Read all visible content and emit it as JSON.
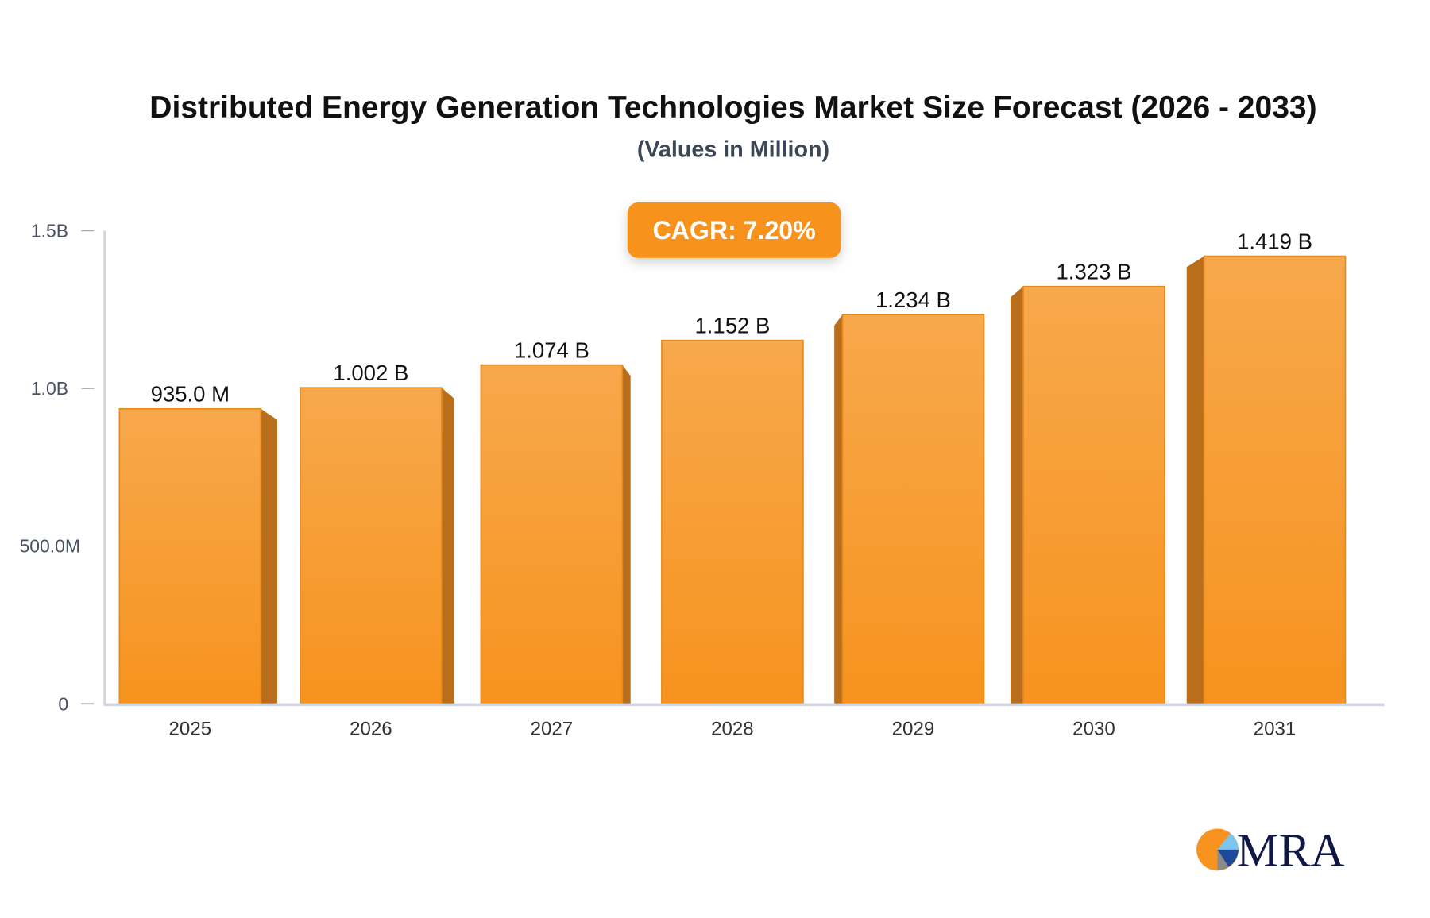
{
  "chart_data": {
    "type": "bar",
    "title": "Distributed Energy Generation Technologies Market Size Forecast (2026 - 2033)",
    "subtitle": "(Values in Million)",
    "badge": "CAGR: 7.20%",
    "categories": [
      "2025",
      "2026",
      "2027",
      "2028",
      "2029",
      "2030",
      "2031"
    ],
    "values": [
      935.0,
      1002,
      1074,
      1152,
      1234,
      1323,
      1419
    ],
    "value_unit": "Million",
    "data_labels": [
      "935.0 M",
      "1.002 B",
      "1.074 B",
      "1.152 B",
      "1.234 B",
      "1.323 B",
      "1.419 B"
    ],
    "ylim": [
      0,
      1500
    ],
    "yticks": [
      {
        "value": 0,
        "label": "0"
      },
      {
        "value": 500,
        "label": "500.0M"
      },
      {
        "value": 1000,
        "label": "1.0B"
      },
      {
        "value": 1500,
        "label": "1.5B"
      }
    ],
    "xlabel": "",
    "ylabel": "",
    "grid": false,
    "colors": {
      "bar": "#f7931e",
      "bar_light": "#f7a84c",
      "bar_side": "#b86e1a",
      "badge": "#f7931e",
      "axis": "#d3d5dc"
    }
  },
  "logo": {
    "text": "MRA"
  }
}
